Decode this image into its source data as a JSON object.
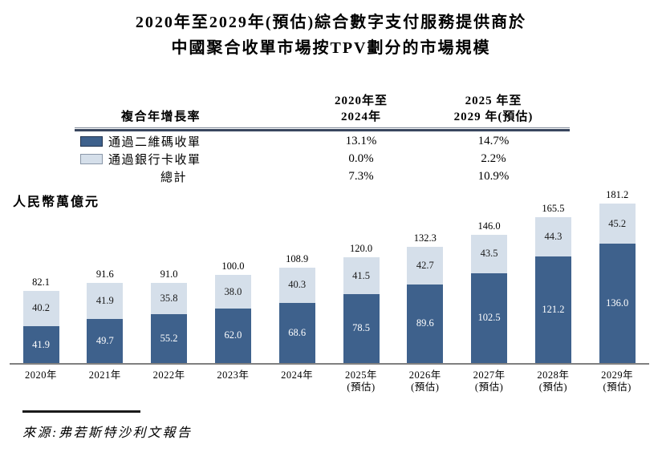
{
  "title": {
    "line1": "2020年至2029年(預估)綜合數字支付服務提供商於",
    "line2": "中國聚合收單市場按TPV劃分的市場規模"
  },
  "cagr_table": {
    "header": {
      "col1": "複合年增長率",
      "col2_line1": "2020年至",
      "col2_line2": "2024年",
      "col3_line1": "2025 年至",
      "col3_line2": "2029 年(預估)"
    },
    "rows": [
      {
        "label": "通過二維碼收單",
        "v1": "13.1%",
        "v2": "14.7%"
      },
      {
        "label": "通過銀行卡收單",
        "v1": "0.0%",
        "v2": "2.2%"
      },
      {
        "label": "總計",
        "v1": "7.3%",
        "v2": "10.9%"
      }
    ]
  },
  "unit_label": "人民幣萬億元",
  "chart_data": {
    "type": "bar",
    "stacked": true,
    "title": "2020年至2029年(預估)綜合數字支付服務提供商於中國聚合收單市場按TPV劃分的市場規模",
    "ylabel": "人民幣萬億元",
    "xlabel": "",
    "grid": false,
    "ylim": [
      0,
      186
    ],
    "legend_position": "table-top-left",
    "categories": [
      "2020年",
      "2021年",
      "2022年",
      "2023年",
      "2024年",
      "2025年",
      "2026年",
      "2027年",
      "2028年",
      "2029年"
    ],
    "category_sublabels": [
      "",
      "",
      "",
      "",
      "",
      "(預估)",
      "(預估)",
      "(預估)",
      "(預估)",
      "(預估)"
    ],
    "series": [
      {
        "name": "通過二維碼收單",
        "color": "#3e618c",
        "label_color": "#ffffff",
        "values": [
          41.9,
          49.7,
          55.2,
          62.0,
          68.6,
          78.5,
          89.6,
          102.5,
          121.2,
          136.0
        ],
        "cagr_2020_2024": "13.1%",
        "cagr_2025_2029": "14.7%"
      },
      {
        "name": "通過銀行卡收單",
        "color": "#d5dfea",
        "label_color": "#1a1a1a",
        "values": [
          40.2,
          41.9,
          35.8,
          38.0,
          40.3,
          41.5,
          42.7,
          43.5,
          44.3,
          45.2
        ],
        "cagr_2020_2024": "0.0%",
        "cagr_2025_2029": "2.2%"
      }
    ],
    "totals": [
      82.1,
      91.6,
      91.0,
      100.0,
      108.9,
      120.0,
      132.3,
      146.0,
      165.5,
      181.2
    ],
    "totals_cagr": {
      "cagr_2020_2024": "7.3%",
      "cagr_2025_2029": "10.9%"
    }
  },
  "source": "來源:弗若斯特沙利文報告"
}
